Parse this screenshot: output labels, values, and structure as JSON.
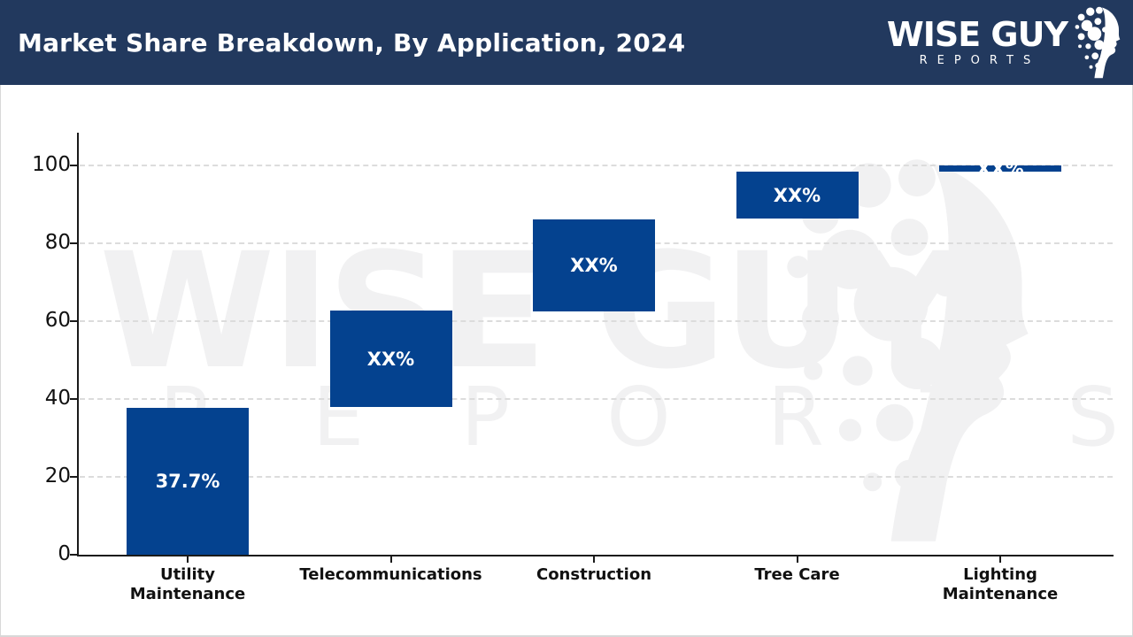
{
  "header": {
    "title": "Market Share Breakdown, By Application, 2024",
    "logo": {
      "line1": "WISE GUY",
      "line2": "REPORTS"
    }
  },
  "watermark": {
    "line1": "WISE GUY",
    "line2": "REPORTS"
  },
  "colors": {
    "header_navy": "#22395e",
    "bar_blue": "#04428f",
    "gridline": "#dcdcdc",
    "axis": "#1a1a1a",
    "watermark": "#f1f1f2",
    "frame_border": "#d8d8d8",
    "bar_label_text": "#ffffff",
    "title_text": "#ffffff"
  },
  "chart_data": {
    "type": "bar",
    "subtype": "waterfall",
    "title": "Market Share Breakdown, By Application, 2024",
    "xlabel": "",
    "ylabel": "",
    "categories": [
      "Utility\nMaintenance",
      "Telecommunications",
      "Construction",
      "Tree Care",
      "Lighting\nMaintenance"
    ],
    "segments": [
      {
        "category": "Utility Maintenance",
        "start": 0,
        "end": 37.7,
        "value_label": "37.7%"
      },
      {
        "category": "Telecommunications",
        "start": 37.9,
        "end": 62.7,
        "value_label": "XX%"
      },
      {
        "category": "Construction",
        "start": 62.6,
        "end": 86.1,
        "value_label": "XX%"
      },
      {
        "category": "Tree Care",
        "start": 86.3,
        "end": 98.4,
        "value_label": "XX%"
      },
      {
        "category": "Lighting Maintenance",
        "start": 98.3,
        "end": 100,
        "value_label": "XX%"
      }
    ],
    "y_ticks": [
      0,
      20,
      40,
      60,
      80,
      100
    ],
    "ylim": [
      0,
      108
    ],
    "grid": "horizontal-dashed",
    "legend": "none"
  }
}
